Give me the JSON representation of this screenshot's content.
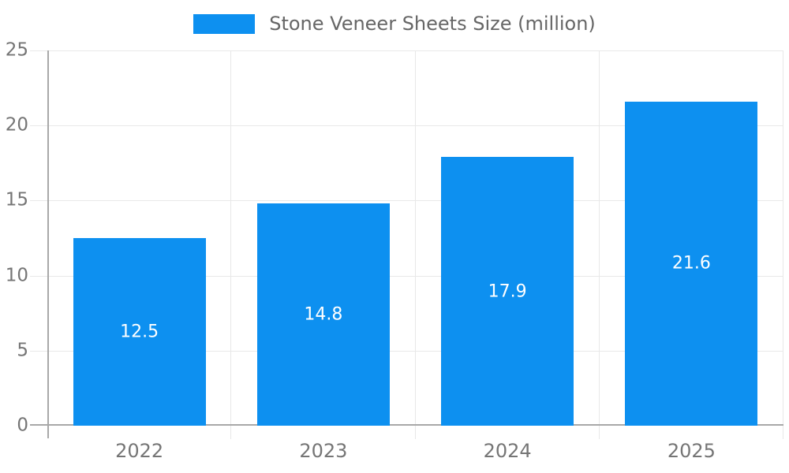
{
  "chart_data": {
    "type": "bar",
    "legend": {
      "label": "Stone Veneer Sheets Size (million)",
      "position": "top-center"
    },
    "categories": [
      "2022",
      "2023",
      "2024",
      "2025"
    ],
    "values": [
      12.5,
      14.8,
      17.9,
      21.6
    ],
    "value_labels": [
      "12.5",
      "14.8",
      "17.9",
      "21.6"
    ],
    "ylim": [
      0,
      25
    ],
    "yticks": [
      0,
      5,
      10,
      15,
      20,
      25
    ],
    "grid": true,
    "xlabel": "",
    "ylabel": "",
    "colors": {
      "bar": "#0d90f0",
      "grid": "#e8e8e8",
      "axis": "#a8a8a8",
      "tick_label": "#757575",
      "legend_label": "#666666",
      "value_label": "#ffffff",
      "background": "#ffffff"
    }
  }
}
